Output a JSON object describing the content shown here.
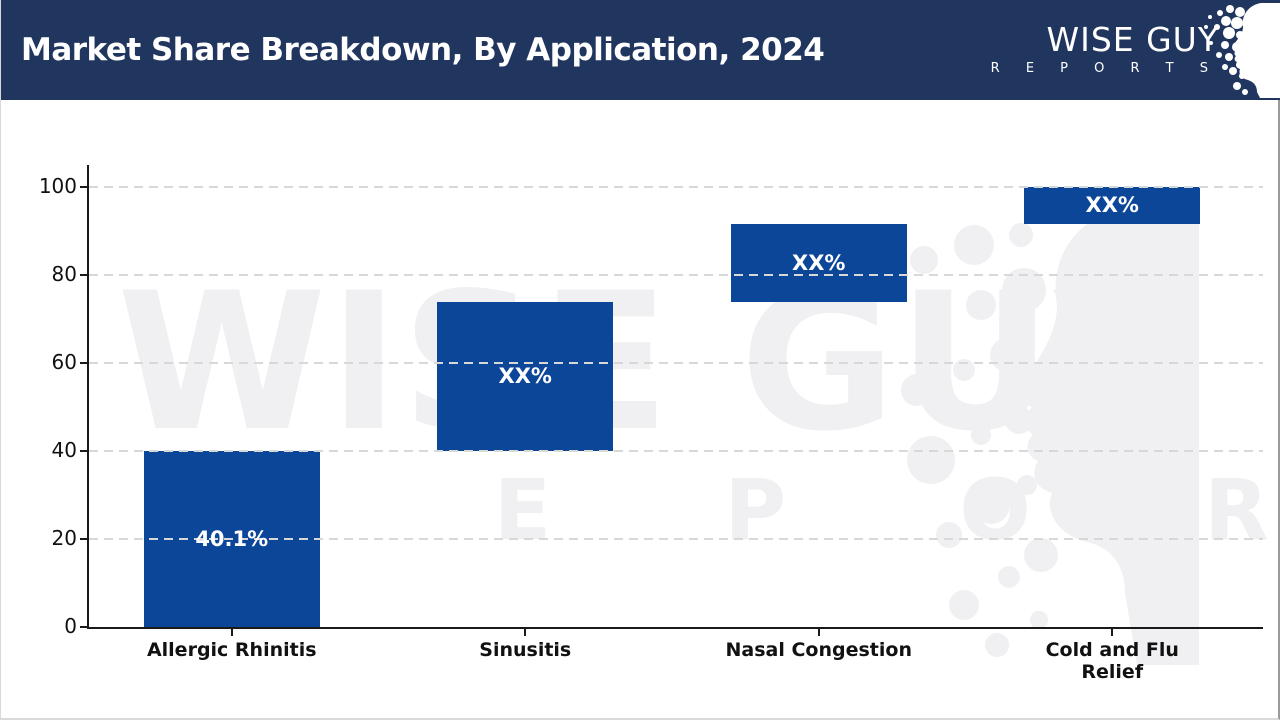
{
  "header": {
    "title": "Market Share Breakdown, By Application, 2024",
    "logo": {
      "brand_line1": "WISE GUY",
      "brand_line2": "R E P O R T S"
    }
  },
  "watermark": {
    "line1": "WISE GUY",
    "line2": "R E P O R T S"
  },
  "chart_data": {
    "type": "bar",
    "subtype": "floating-waterfall",
    "title": "Market Share Breakdown, By Application, 2024",
    "categories": [
      "Allergic Rhinitis",
      "Sinusitis",
      "Nasal Congestion",
      "Cold and Flu Relief"
    ],
    "category_label_lines": [
      [
        "Allergic Rhinitis"
      ],
      [
        "Sinusitis"
      ],
      [
        "Nasal Congestion"
      ],
      [
        "Cold and Flu",
        "Relief"
      ]
    ],
    "segments": [
      {
        "category": "Allergic Rhinitis",
        "start": 0,
        "end": 40.1,
        "value": 40.1,
        "value_label": "40.1%"
      },
      {
        "category": "Sinusitis",
        "start": 40.1,
        "end": 73.9,
        "value": 33.8,
        "value_label": "XX%"
      },
      {
        "category": "Nasal Congestion",
        "start": 73.9,
        "end": 91.6,
        "value": 17.7,
        "value_label": "XX%"
      },
      {
        "category": "Cold and Flu Relief",
        "start": 91.6,
        "end": 100,
        "value": 8.4,
        "value_label": "XX%"
      }
    ],
    "xlabel": "",
    "ylabel": "",
    "y_ticks": [
      0,
      20,
      40,
      60,
      80,
      100
    ],
    "ylim": [
      0,
      105
    ],
    "grid": {
      "horizontal": true,
      "style": "dashed",
      "color": "#d8d8d8",
      "drawn_over_bars": true
    },
    "legend": "none",
    "colors": {
      "bar": "#0c4699",
      "value_label": "#ffffff",
      "axis": "#1a1a1a",
      "header_background": "#21365f",
      "watermark": "#f0f0f2"
    }
  }
}
